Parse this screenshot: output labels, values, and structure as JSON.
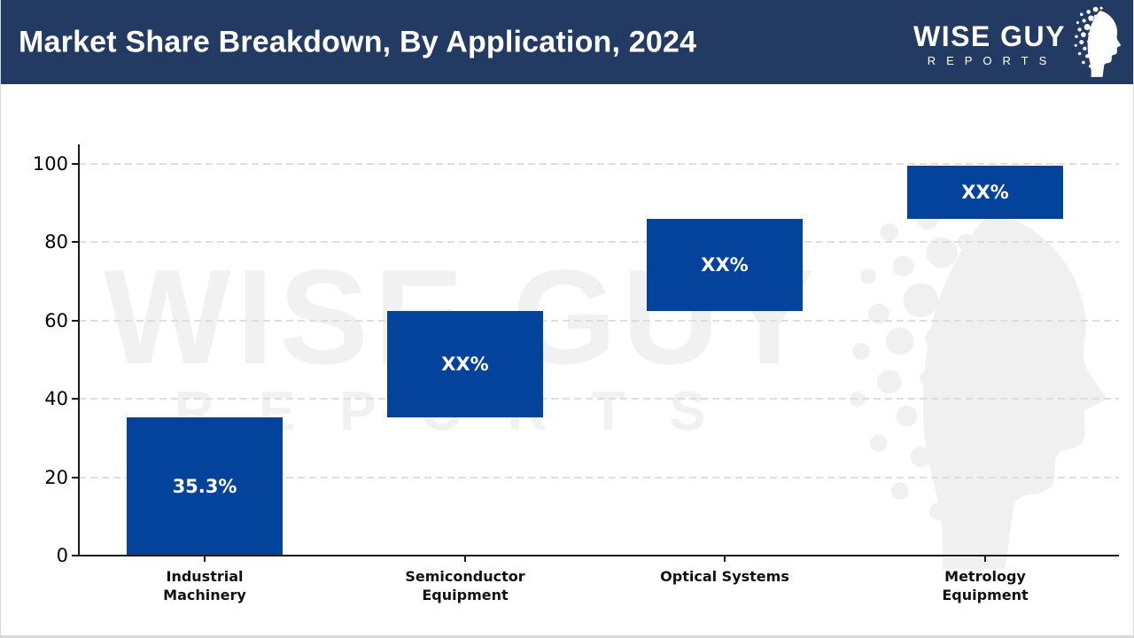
{
  "header": {
    "title": "Market Share Breakdown, By Application, 2024",
    "bg_color": "#233A63",
    "logo": {
      "wordmark": "WISE GUY",
      "subtitle": "REPORTS"
    }
  },
  "watermark": {
    "wordmark": "WISE GUY",
    "subtitle": "REPORTS"
  },
  "chart_data": {
    "type": "bar",
    "subtype": "floating-segment-waterfall",
    "title": "Market Share Breakdown, By Application, 2024",
    "xlabel": "",
    "ylabel": "",
    "categories": [
      "Industrial Machinery",
      "Semiconductor Equipment",
      "Optical Systems",
      "Metrology Equipment"
    ],
    "category_lines": [
      [
        "Industrial",
        "Machinery"
      ],
      [
        "Semiconductor",
        "Equipment"
      ],
      [
        "Optical Systems"
      ],
      [
        "Metrology",
        "Equipment"
      ]
    ],
    "segments": [
      {
        "category": "Industrial Machinery",
        "start": 0,
        "end": 35.3,
        "label": "35.3%"
      },
      {
        "category": "Semiconductor Equipment",
        "start": 35.3,
        "end": 62.4,
        "label": "XX%"
      },
      {
        "category": "Optical Systems",
        "start": 62.4,
        "end": 85.9,
        "label": "XX%"
      },
      {
        "category": "Metrology Equipment",
        "start": 85.9,
        "end": 99.5,
        "label": "XX%"
      }
    ],
    "yticks": [
      0,
      20,
      40,
      60,
      80,
      100
    ],
    "ylim": [
      0,
      105.7
    ],
    "grid": "horizontal-dashed",
    "legend": "none",
    "bar_color": "#04439C",
    "value_label_color": "#FFFFFF"
  }
}
